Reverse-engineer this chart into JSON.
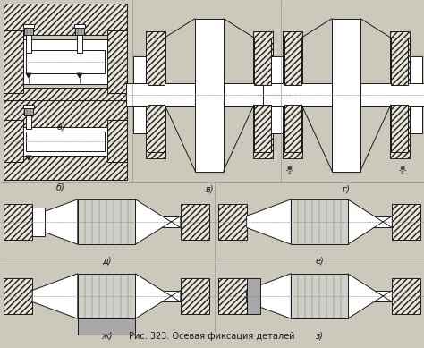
{
  "title": "Рис. 323. Осевая фиксация деталей",
  "background_color": "#ccc8bc",
  "line_color": "#1a1a1a",
  "fill_color": "#ffffff",
  "hatch_fill": "#e8e4d8",
  "gray_fill": "#a8a8a8",
  "light_gray": "#d0cfc8",
  "labels": [
    "а)",
    "б)",
    "в)",
    "г)",
    "д)",
    "е)",
    "ж)",
    "з)"
  ],
  "title_fontsize": 7,
  "label_fontsize": 7,
  "lw": 0.7
}
